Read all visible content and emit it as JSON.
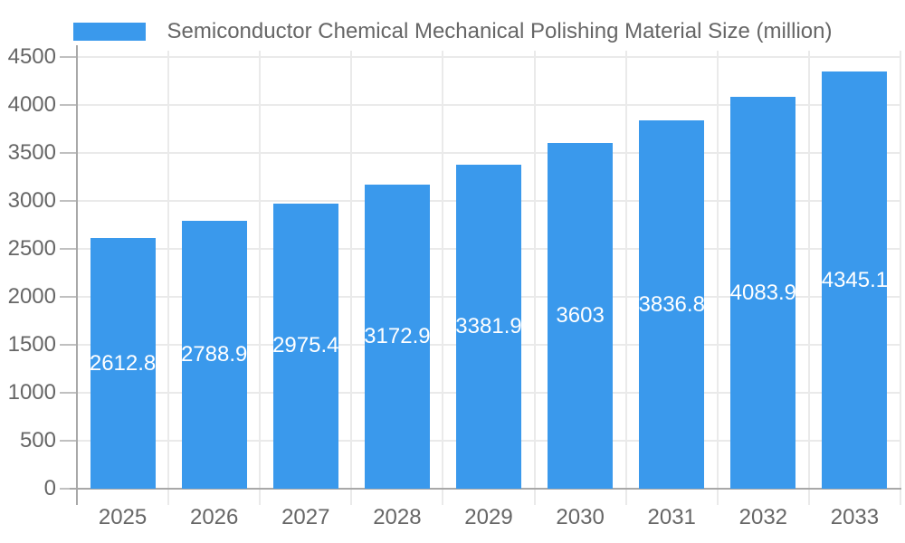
{
  "legend": {
    "label": "Semiconductor Chemical Mechanical Polishing Material Size (million)"
  },
  "colors": {
    "bar": "#3A99EC",
    "text": "#666666",
    "grid": "#EAEAEA",
    "tick": "#C0C0C0",
    "axis_line": "#A8A8A8",
    "value_label": "#FFFFFF",
    "background": "#FFFFFF"
  },
  "chart_data": {
    "type": "bar",
    "title": "Semiconductor Chemical Mechanical Polishing Material Size (million)",
    "categories": [
      "2025",
      "2026",
      "2027",
      "2028",
      "2029",
      "2030",
      "2031",
      "2032",
      "2033"
    ],
    "values": [
      2612.8,
      2788.9,
      2975.4,
      3172.9,
      3381.9,
      3603,
      3836.8,
      4083.9,
      4345.1
    ],
    "xlabel": "",
    "ylabel": "",
    "ylim": [
      0,
      4500
    ],
    "y_ticks": [
      0,
      500,
      1000,
      1500,
      2000,
      2500,
      3000,
      3500,
      4000,
      4500
    ],
    "grid": true,
    "legend_position": "top",
    "value_label_position": "inside-center"
  }
}
